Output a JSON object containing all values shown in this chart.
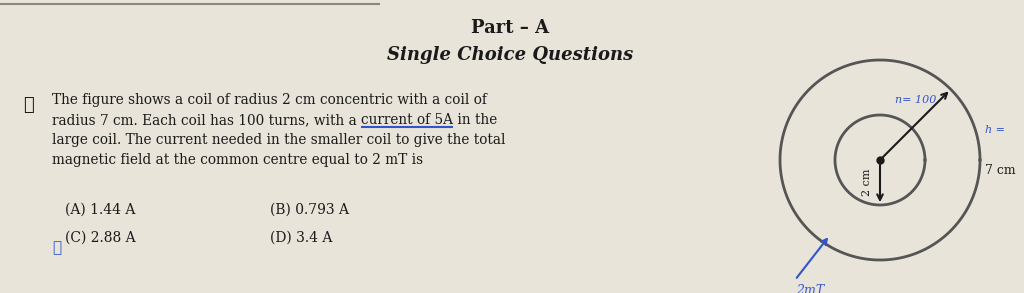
{
  "background_color": "#ccc8be",
  "paper_color": "#e8e4da",
  "title_line1": "Part – A",
  "title_line2": "Single Choice Questions",
  "lines": [
    "The figure shows a coil of radius 2 cm concentric with a coil of",
    "radius 7 cm. Each coil has 100 turns, with a current of 5A in the",
    "large coil. The current needed in the smaller coil to give the total",
    "magnetic field at the common centre equal to 2 mT is"
  ],
  "underline_start": "radius 7 cm. Each coil has 100 turns, with a ",
  "underline_word": "current of 5A",
  "underline_end": " in the",
  "options_row1": [
    "(A) 1.44 A",
    "(B) 0.793 A"
  ],
  "options_row2": [
    "(C) 2.88 A",
    "(D) 3.4 A"
  ],
  "fig_width": 10.24,
  "fig_height": 2.93,
  "dpi": 100
}
